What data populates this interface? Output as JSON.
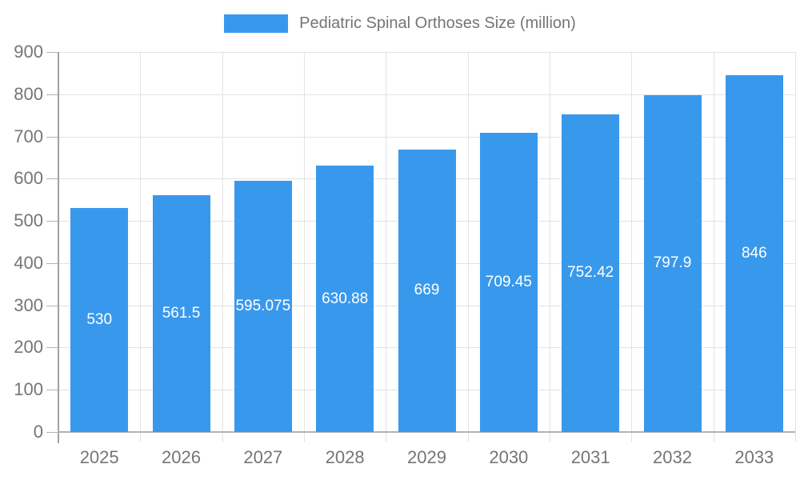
{
  "legend": {
    "label": "Pediatric Spinal Orthoses Size (million)"
  },
  "chart_data": {
    "type": "bar",
    "title": "Pediatric Spinal Orthoses Size (million)",
    "xlabel": "",
    "ylabel": "",
    "categories": [
      "2025",
      "2026",
      "2027",
      "2028",
      "2029",
      "2030",
      "2031",
      "2032",
      "2033"
    ],
    "values": [
      530,
      561.5,
      595.075,
      630.88,
      669,
      709.45,
      752.42,
      797.9,
      846
    ],
    "value_labels": [
      "530",
      "561.5",
      "595.075",
      "630.88",
      "669",
      "709.45",
      "752.42",
      "797.9",
      "846"
    ],
    "ylim": [
      0,
      900
    ],
    "ytick_interval": 100,
    "ytick_labels": [
      "0",
      "100",
      "200",
      "300",
      "400",
      "500",
      "600",
      "700",
      "800",
      "900"
    ],
    "grid": true,
    "legend_position": "top"
  },
  "colors": {
    "bar": "#3899EC",
    "value_label": "#FFFFFF",
    "axis_text": "#757575",
    "legend_text": "#757575",
    "grid_line": "#E3E3E3",
    "x_axis_line": "#B3B3B3",
    "y_axis_line": "#A2A2A2",
    "tick_mark": "#B3B3B3",
    "background": "#FFFFFF"
  }
}
